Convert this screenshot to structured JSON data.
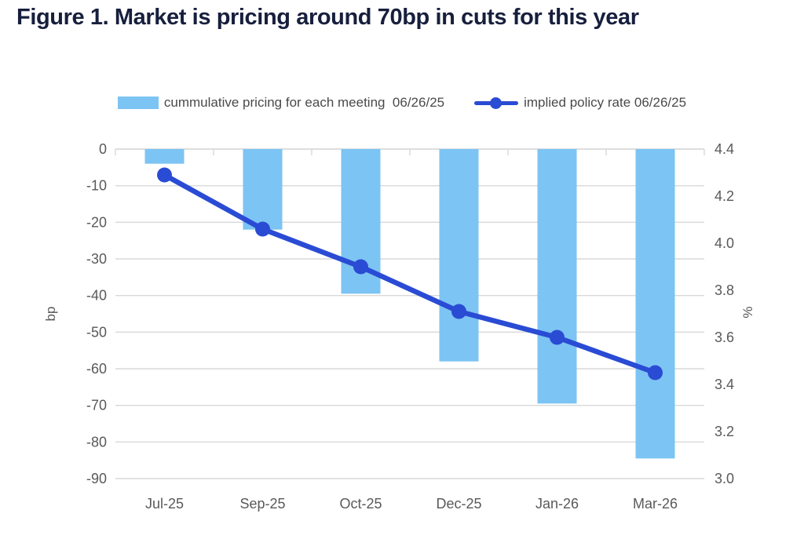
{
  "figure": {
    "title": "Figure 1. Market is pricing around 70bp in cuts for this year"
  },
  "legend": {
    "items": [
      {
        "label": "cummulative pricing for each meeting  06/26/25",
        "swatch": "bar-swatch-icon"
      },
      {
        "label": "implied policy rate 06/26/25",
        "swatch": "line-dot-swatch-icon"
      }
    ]
  },
  "colors": {
    "bar": "#7cc4f3",
    "line": "#2a4bd4",
    "grid": "#d9d9d9",
    "axis_text": "#595959",
    "title_text": "#171f3d",
    "legend_text": "#4a4a4a",
    "background": "#ffffff"
  },
  "chart_data": {
    "type": "bar+line",
    "title": "Figure 1. Market is pricing around 70bp in cuts for this year",
    "categories": [
      "Jul-25",
      "Sep-25",
      "Oct-25",
      "Dec-25",
      "Jan-26",
      "Mar-26"
    ],
    "series": [
      {
        "name": "cummulative pricing for each meeting 06/26/25",
        "type": "bar",
        "axis": "left",
        "unit": "bp",
        "color": "#7cc4f3",
        "values": [
          -4,
          -22,
          -39.5,
          -58,
          -69.5,
          -84.5
        ]
      },
      {
        "name": "implied policy rate 06/26/25",
        "type": "line",
        "axis": "right",
        "unit": "%",
        "color": "#2a4bd4",
        "values": [
          4.29,
          4.06,
          3.9,
          3.71,
          3.6,
          3.45
        ]
      }
    ],
    "left_axis": {
      "label": "bp",
      "min": -90,
      "max": 0,
      "tick_labels": [
        "0",
        "-10",
        "-20",
        "-30",
        "-40",
        "-50",
        "-60",
        "-70",
        "-80",
        "-90"
      ]
    },
    "right_axis": {
      "label": "%",
      "min": 3.0,
      "max": 4.4,
      "tick_labels": [
        "4.4",
        "4.2",
        "4.0",
        "3.8",
        "3.6",
        "3.4",
        "3.2",
        "3.0"
      ]
    },
    "grid": true,
    "legend_position": "top"
  }
}
